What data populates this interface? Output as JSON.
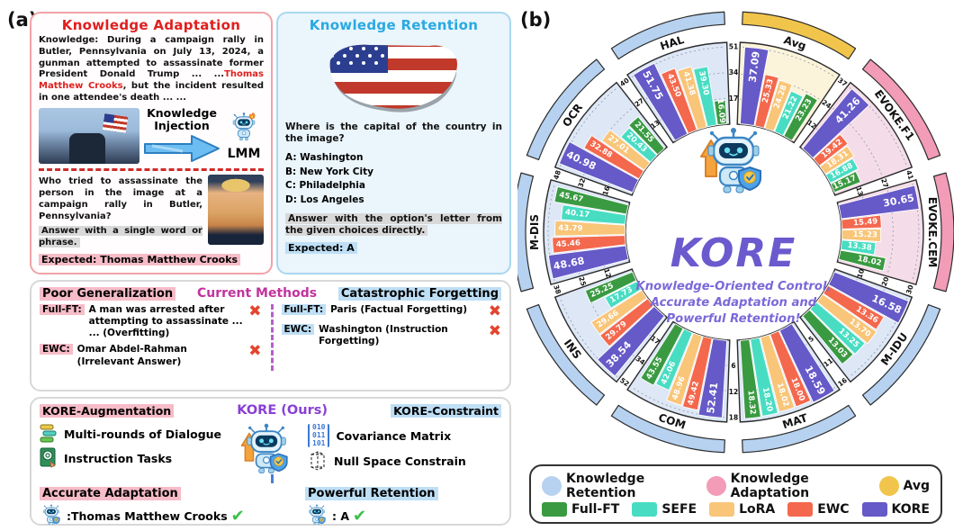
{
  "panel_a": {
    "label": "(a)",
    "adaptation": {
      "title": "Knowledge Adaptation",
      "knowledge_label": "Knowledge:",
      "knowledge_pre": " During a campaign rally in Butler, Pennsylvania on July 13, 2024, a gunman attempted to assassinate former President Donald Trump ... ...",
      "knowledge_highlight": "Thomas Matthew Crooks",
      "knowledge_post": ", but the incident resulted in one attendee's death ... ...",
      "injection_label_1": "Knowledge",
      "injection_label_2": "Injection",
      "lmm_label": "LMM",
      "question": "Who tried to assassinate the person in the image at a campaign rally in Butler, Pennsylvania?",
      "instruction": "Answer with a single word or phrase.",
      "expected": "Expected: Thomas Matthew Crooks"
    },
    "retention": {
      "title": "Knowledge Retention",
      "question": "Where is the capital of the country in the image?",
      "options": [
        "A: Washington",
        "B: New York City",
        "C: Philadelphia",
        "D: Los Angeles"
      ],
      "instruction": "Answer with the option's letter from the given choices directly.",
      "expected": "Expected: A"
    },
    "methods": {
      "left_title": "Poor Generalization",
      "center_title": "Current Methods",
      "right_title": "Catastrophic Forgetting",
      "left_rows": [
        {
          "label": "Full-FT:",
          "text": "A man was arrested after attempting to assassinate ... ... (Overfitting)"
        },
        {
          "label": "EWC:",
          "text": "Omar Abdel-Rahman (Irrelevant Answer)"
        }
      ],
      "right_rows": [
        {
          "label": "Full-FT:",
          "text": "Paris (Factual Forgetting)"
        },
        {
          "label": "EWC:",
          "text": "Washington (Instruction Forgetting)"
        }
      ]
    },
    "kore": {
      "left_title": "KORE-Augmentation",
      "center_title": "KORE (Ours)",
      "right_title": "KORE-Constraint",
      "left_items": [
        "Multi-rounds of Dialogue",
        "Instruction Tasks"
      ],
      "right_items": [
        "Covariance Matrix",
        "Null Space Constrain"
      ],
      "adapt_title": "Accurate Adaptation",
      "adapt_answer": ":Thomas Matthew Crooks",
      "retain_title": "Powerful Retention",
      "retain_answer": ": A"
    }
  },
  "panel_b": {
    "label": "(b)",
    "center": {
      "title": "KORE",
      "subtitle_lines": [
        "Knowledge-Oriented Control,",
        "Accurate Adaptation and",
        "Powerful Retention!"
      ],
      "accent_color": "#6a5acd"
    }
  },
  "chart_data": {
    "type": "radial-bar",
    "bar_order": [
      "KORE",
      "EWC",
      "LoRA",
      "SEFE",
      "Full-FT"
    ],
    "method_colors": {
      "KORE": "#6659c8",
      "EWC": "#f4684d",
      "LoRA": "#f9c578",
      "SEFE": "#48ddc2",
      "Full-FT": "#3a9a41"
    },
    "group_colors": {
      "Knowledge Retention": "#b7d2f0",
      "Knowledge Adaptation": "#f29cb7",
      "Avg": "#f1c54c"
    },
    "group_bg": {
      "Knowledge Retention": "#dde7f6",
      "Knowledge Adaptation": "#f4dde9",
      "Avg": "#fbf3da"
    },
    "segments": [
      {
        "name": "Avg",
        "group": "Avg",
        "ticks": [
          12,
          24,
          37
        ],
        "values": {
          "KORE": "37.09",
          "EWC": "25.33",
          "LoRA": "24.28",
          "SEFE": "21.22",
          "Full-FT": "23.23"
        }
      },
      {
        "name": "EVOKE.F1",
        "group": "Knowledge Adaptation",
        "ticks": [
          13,
          27,
          41
        ],
        "values": {
          "KORE": "41.26",
          "EWC": "19.42",
          "LoRA": "18.31",
          "SEFE": "16.88",
          "Full-FT": "15.17"
        }
      },
      {
        "name": "EVOKE.CEM",
        "group": "Knowledge Adaptation",
        "ticks": [
          10,
          20,
          30
        ],
        "values": {
          "KORE": "30.65",
          "EWC": "15.49",
          "LoRA": "15.23",
          "SEFE": "13.38",
          "Full-FT": "18.02"
        }
      },
      {
        "name": "M-IDU",
        "group": "Knowledge Retention",
        "ticks": [
          5,
          11,
          16
        ],
        "values": {
          "KORE": "16.58",
          "EWC": "13.36",
          "LoRA": "13.70",
          "SEFE": "13.25",
          "Full-FT": "13.03"
        }
      },
      {
        "name": "MAT",
        "group": "Knowledge Retention",
        "ticks": [
          6,
          12,
          18
        ],
        "values": {
          "KORE": "18.59",
          "EWC": "18.00",
          "LoRA": "18.02",
          "SEFE": "18.20",
          "Full-FT": "18.32"
        }
      },
      {
        "name": "COM",
        "group": "Knowledge Retention",
        "ticks": [
          17,
          34,
          52
        ],
        "values": {
          "KORE": "52.41",
          "EWC": "49.42",
          "LoRA": "48.96",
          "SEFE": "42.06",
          "Full-FT": "43.55"
        }
      },
      {
        "name": "INS",
        "group": "Knowledge Retention",
        "ticks": [
          12,
          25,
          38
        ],
        "values": {
          "KORE": "38.54",
          "EWC": "29.79",
          "LoRA": "29.66",
          "SEFE": "17.73",
          "Full-FT": "25.25"
        }
      },
      {
        "name": "M-DIS",
        "group": "Knowledge Retention",
        "ticks": [
          16,
          32,
          48
        ],
        "values": {
          "KORE": "48.68",
          "EWC": "45.46",
          "LoRA": "43.79",
          "SEFE": "40.17",
          "Full-FT": "45.67"
        }
      },
      {
        "name": "OCR",
        "group": "Knowledge Retention",
        "ticks": [
          13,
          27,
          40
        ],
        "values": {
          "KORE": "40.98",
          "EWC": "32.88",
          "LoRA": "27.01",
          "SEFE": "20.43",
          "Full-FT": "21.55"
        }
      },
      {
        "name": "HAL",
        "group": "Knowledge Retention",
        "ticks": [
          17,
          34,
          51
        ],
        "values": {
          "KORE": "51.75",
          "EWC": "43.50",
          "LoRA": "41.38",
          "SEFE": "39.30",
          "Full-FT": "16.09"
        }
      }
    ]
  },
  "legend": {
    "groups": [
      {
        "label": "Knowledge Retention",
        "color": "#b7d2f0"
      },
      {
        "label": "Knowledge Adaptation",
        "color": "#f29cb7"
      },
      {
        "label": "Avg",
        "color": "#f1c54c"
      }
    ],
    "methods": [
      {
        "label": "Full-FT",
        "color": "#3a9a41"
      },
      {
        "label": "SEFE",
        "color": "#48ddc2"
      },
      {
        "label": "LoRA",
        "color": "#f9c578"
      },
      {
        "label": "EWC",
        "color": "#f4684d"
      },
      {
        "label": "KORE",
        "color": "#6659c8"
      }
    ]
  }
}
